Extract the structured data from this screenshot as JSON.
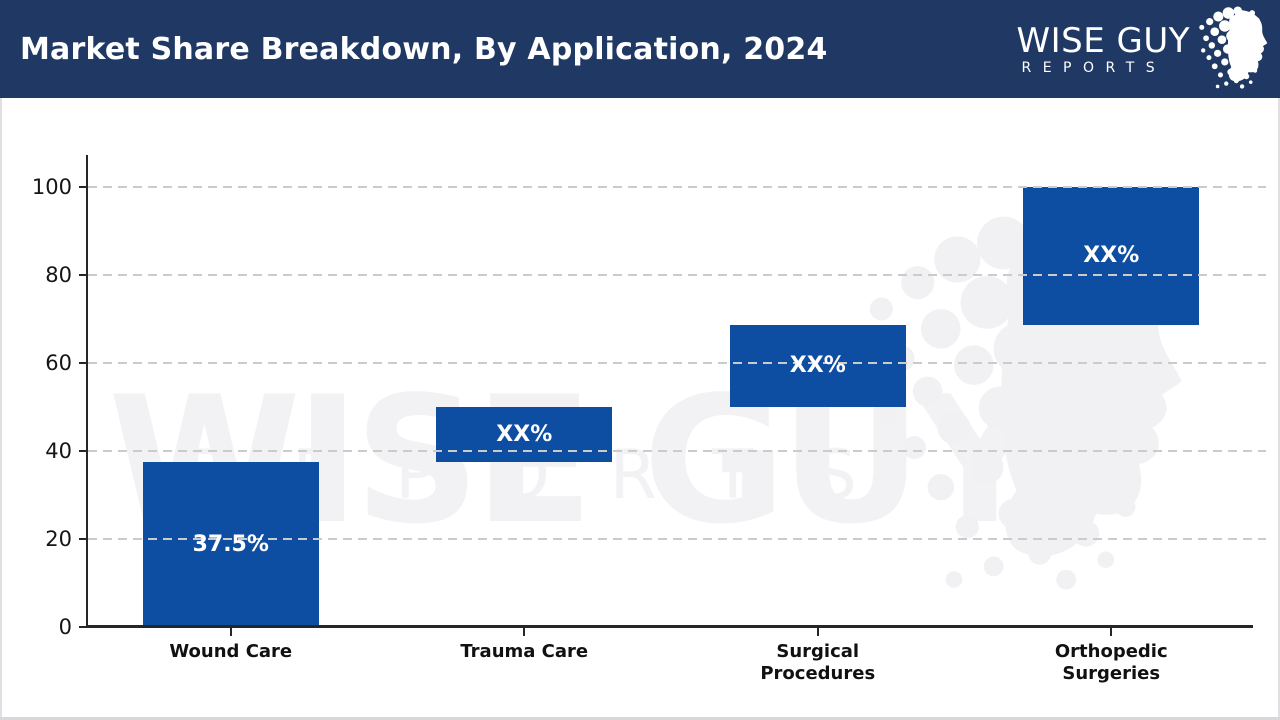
{
  "header": {
    "title": "Market Share Breakdown, By Application, 2024",
    "bg_color": "#1f3864",
    "logo": {
      "primary": "WISE GUY",
      "secondary": "REPORTS",
      "icon": "dotted-face-profile"
    }
  },
  "watermark": {
    "primary": "WISE GUY",
    "secondary": "REPORTS"
  },
  "chart_data": {
    "type": "bar",
    "subtype": "waterfall",
    "title": "Market Share Breakdown, By Application, 2024",
    "categories": [
      "Wound Care",
      "Trauma Care",
      "Surgical\nProcedures",
      "Orthopedic\nSurgeries"
    ],
    "bars": [
      {
        "category": "Wound Care",
        "start": 0,
        "end": 37.5,
        "label": "37.5%"
      },
      {
        "category": "Trauma Care",
        "start": 37.5,
        "end": 50,
        "label": "XX%"
      },
      {
        "category": "Surgical Procedures",
        "start": 50,
        "end": 68.75,
        "label": "XX%"
      },
      {
        "category": "Orthopedic Surgeries",
        "start": 68.75,
        "end": 100,
        "label": "XX%"
      }
    ],
    "ylim": [
      0,
      100
    ],
    "yticks": [
      0,
      20,
      40,
      60,
      80,
      100
    ],
    "xlabel": "",
    "ylabel": "",
    "grid": "horizontal-dashed",
    "legend": "none",
    "bar_color": "#0d4da2",
    "bar_label_color": "#ffffff",
    "axis_color": "#262626",
    "gridline_color": "#cbcbcb"
  }
}
